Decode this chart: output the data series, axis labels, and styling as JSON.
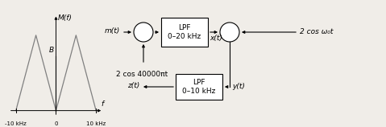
{
  "bg_color": "#f0ede8",
  "spectrum": {
    "peak_label": "B",
    "xlabel": "f",
    "ylabel": "M(f)",
    "x_tick_labels": [
      "-10 kHz",
      "0",
      "10 kHz"
    ]
  },
  "block1": {
    "label": "LPF\n0–20 kHz"
  },
  "block2": {
    "label": "LPF\n0–10 kHz"
  },
  "cos1_label": "2 cos 40000πt",
  "cos2_label": "2 cos ω₀t",
  "mt_label": "m(t)",
  "xt_label": "x(t)",
  "yt_label": "y(t)",
  "zt_label": "z(t)"
}
